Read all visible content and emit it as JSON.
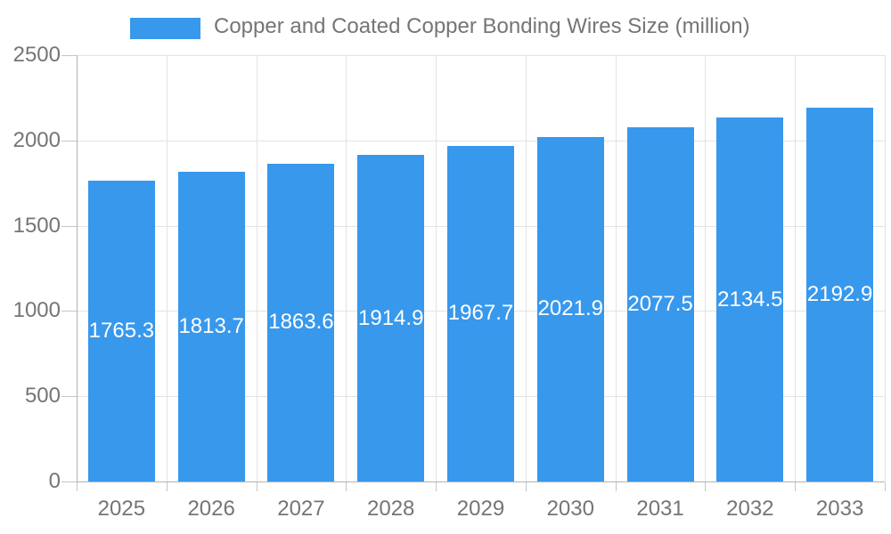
{
  "chart_data": {
    "type": "bar",
    "title": "Copper and Coated Copper Bonding Wires Size (million)",
    "categories": [
      "2025",
      "2026",
      "2027",
      "2028",
      "2029",
      "2030",
      "2031",
      "2032",
      "2033"
    ],
    "values": [
      1765.3,
      1813.7,
      1863.6,
      1914.9,
      1967.7,
      2021.9,
      2077.5,
      2134.5,
      2192.9
    ],
    "value_labels": [
      "1765.3",
      "1813.7",
      "1863.6",
      "1914.9",
      "1967.7",
      "2021.9",
      "2077.5",
      "2134.5",
      "2192.9"
    ],
    "xlabel": "",
    "ylabel": "",
    "ylim": [
      0,
      2500
    ],
    "yticks": [
      0,
      500,
      1000,
      1500,
      2000,
      2500
    ],
    "grid": true,
    "legend_position": "top",
    "colors": {
      "bar": "#3898EC",
      "value_label_text": "#ffffff",
      "axis_text": "#757575",
      "gridline": "#e3e3e3",
      "axis_line": "#b3b3b3",
      "tick_mark": "#c6c6c6",
      "background": "#ffffff"
    }
  }
}
